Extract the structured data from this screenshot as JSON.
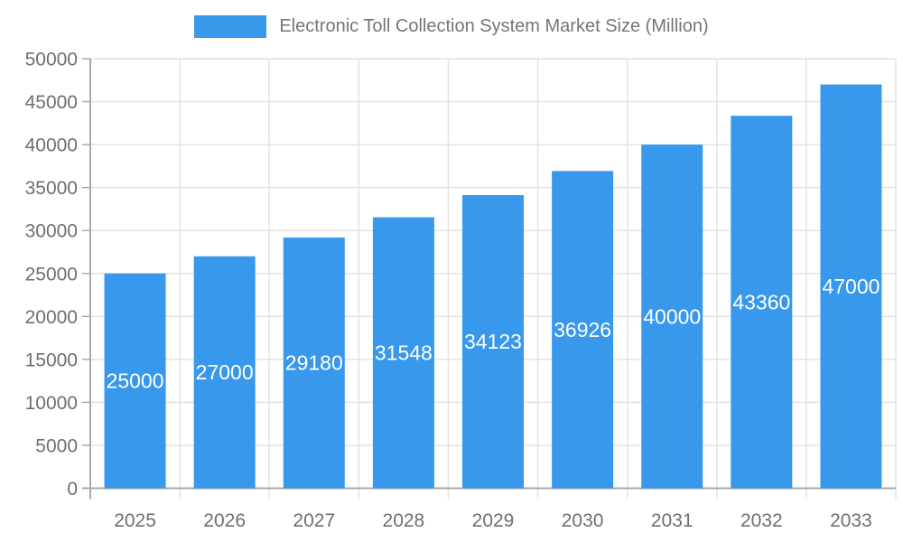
{
  "legend": {
    "label": "Electronic Toll Collection System Market Size (Million)",
    "swatch_color": "#3898EC"
  },
  "chart_data": {
    "type": "bar",
    "title": "Electronic Toll Collection System Market Size (Million)",
    "categories": [
      "2025",
      "2026",
      "2027",
      "2028",
      "2029",
      "2030",
      "2031",
      "2032",
      "2033"
    ],
    "values": [
      25000,
      27000,
      29180,
      31548,
      34123,
      36926,
      40000,
      43360,
      47000
    ],
    "xlabel": "",
    "ylabel": "",
    "ylim": [
      0,
      50000
    ],
    "yticks": [
      0,
      5000,
      10000,
      15000,
      20000,
      25000,
      30000,
      35000,
      40000,
      45000,
      50000
    ],
    "grid": true,
    "legend_position": "top",
    "bar_color": "#3898EC",
    "value_label_color": "#ffffff",
    "axis_label_color": "#6f6f6f",
    "gridline_color": "#e3e3e3",
    "axis_line_color": "#a8a8a8"
  }
}
